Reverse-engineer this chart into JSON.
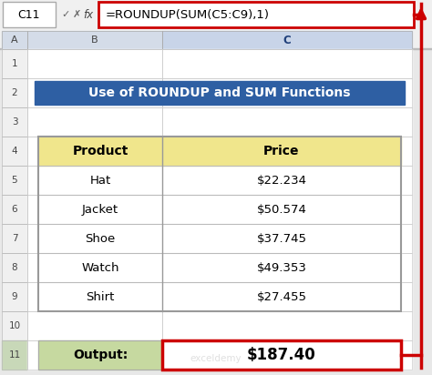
{
  "title": "Use of ROUNDUP and SUM Functions",
  "title_bg": "#2E5FA3",
  "title_fg": "#FFFFFF",
  "header_row": [
    "Product",
    "Price"
  ],
  "header_bg": "#F0E68C",
  "data_rows": [
    [
      "Hat",
      "$22.234"
    ],
    [
      "Jacket",
      "$50.574"
    ],
    [
      "Shoe",
      "$37.745"
    ],
    [
      "Watch",
      "$49.353"
    ],
    [
      "Shirt",
      "$27.455"
    ]
  ],
  "output_label": "Output:",
  "output_value": "$187.40",
  "output_label_bg": "#C6D9A0",
  "output_value_border": "#CC0000",
  "formula_bar_text": "=ROUNDUP(SUM(C5:C9),1)",
  "formula_bar_cell": "C11",
  "excel_bg": "#E8E8E8",
  "formula_border": "#CC0000",
  "arrow_color": "#CC0000",
  "col_header_bg": "#D4DCE8",
  "col_header_selected_bg": "#C8D4E8",
  "col_header_selected_fg": "#1F3F7A",
  "row_num_bg": "#F0F0F0",
  "row_num_11_bg": "#C8D8B8",
  "grid_color": "#CCCCCC",
  "table_border": "#999999",
  "wm_color": "#CCCCCC"
}
